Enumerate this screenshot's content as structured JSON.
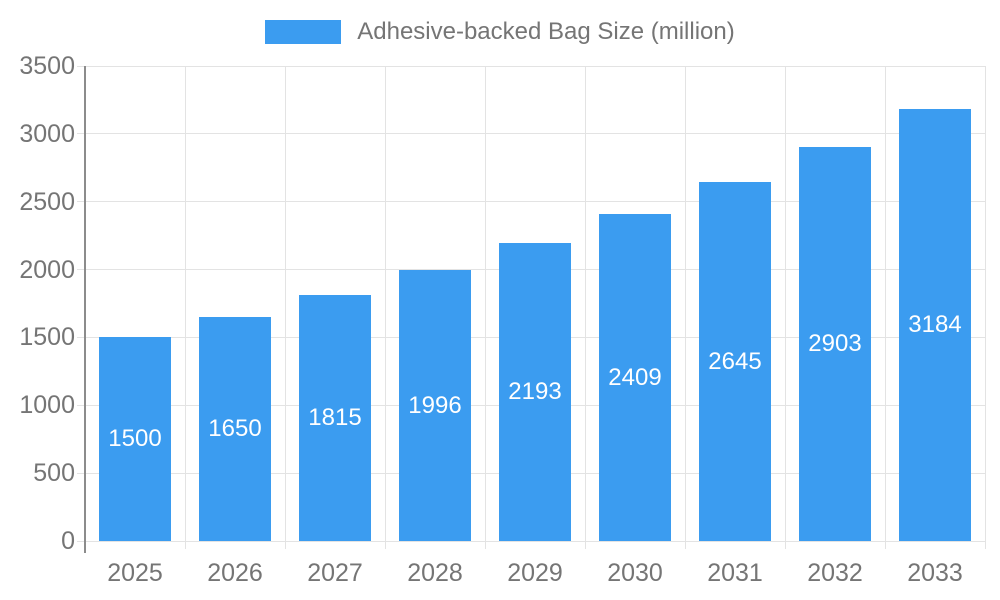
{
  "legend": {
    "label": "Adhesive-backed Bag Size (million)",
    "swatch_color": "#3b9cf0"
  },
  "chart_data": {
    "type": "bar",
    "title": "Adhesive-backed Bag Size (million)",
    "categories": [
      "2025",
      "2026",
      "2027",
      "2028",
      "2029",
      "2030",
      "2031",
      "2032",
      "2033"
    ],
    "values": [
      1500,
      1650,
      1815,
      1996,
      2193,
      2409,
      2645,
      2903,
      3184
    ],
    "value_labels": [
      "1500",
      "1650",
      "1815",
      "1996",
      "2193",
      "2409",
      "2645",
      "2903",
      "3184"
    ],
    "xlabel": "",
    "ylabel": "",
    "ylim": [
      0,
      3500
    ],
    "ytick_step": 500,
    "yticks": [
      "0",
      "500",
      "1000",
      "1500",
      "2000",
      "2500",
      "3000",
      "3500"
    ],
    "grid": true,
    "legend_position": "top-center",
    "bar_color": "#3b9cf0",
    "value_label_color": "#ffffff",
    "tick_label_color": "#757575",
    "gridline_color": "#e3e3e3",
    "axis_line_color": "#8c8c8c"
  }
}
